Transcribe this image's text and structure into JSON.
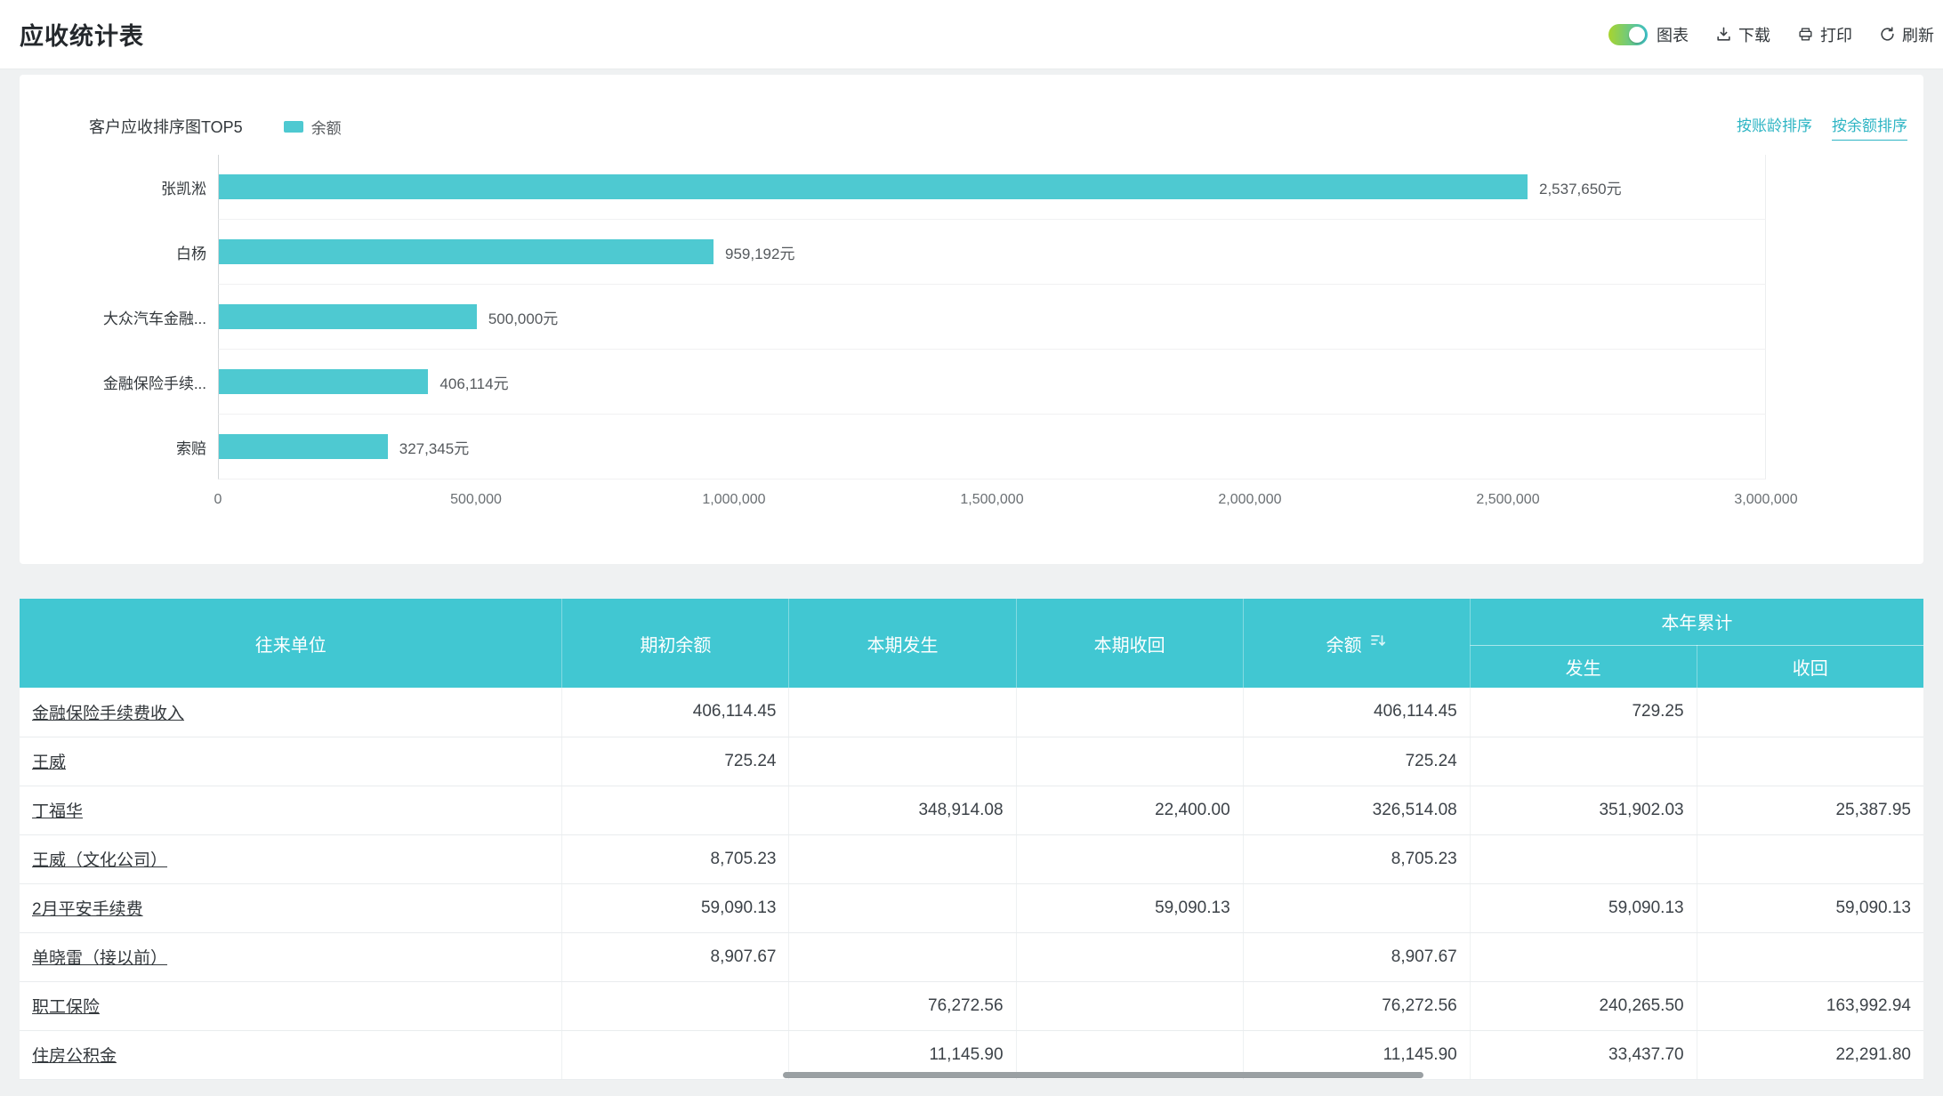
{
  "page": {
    "title": "应收统计表"
  },
  "colors": {
    "accent": "#41c7d2",
    "bar": "#4ec9d1",
    "link": "#2fb5c4"
  },
  "toolbar": {
    "toggle_label": "图表",
    "download_label": "下载",
    "print_label": "打印",
    "refresh_label": "刷新"
  },
  "chart": {
    "title": "客户应收排序图TOP5",
    "legend": "余额",
    "sort_by_age": "按账龄排序",
    "sort_by_balance": "按余额排序"
  },
  "chart_data": {
    "type": "bar",
    "orientation": "horizontal",
    "title": "客户应收排序图TOP5",
    "legend": [
      "余额"
    ],
    "categories": [
      "张凯淞",
      "白杨",
      "大众汽车金融...",
      "金融保险手续...",
      "索赔"
    ],
    "values": [
      2537650,
      959192,
      500000,
      406114,
      327345
    ],
    "labels": [
      "2,537,650元",
      "959,192元",
      "500,000元",
      "406,114元",
      "327,345元"
    ],
    "xlim": [
      0,
      3000000
    ],
    "x_ticks": [
      "0",
      "500,000",
      "1,000,000",
      "1,500,000",
      "2,000,000",
      "2,500,000",
      "3,000,000"
    ],
    "grid": "row-separators",
    "legend_position": "top"
  },
  "table": {
    "headers": {
      "company": "往来单位",
      "opening": "期初余额",
      "current_incurred": "本期发生",
      "current_recovered": "本期收回",
      "balance": "余额",
      "ytd": "本年累计",
      "ytd_incurred": "发生",
      "ytd_recovered": "收回"
    },
    "rows": [
      {
        "company": "金融保险手续费收入",
        "opening": "406,114.45",
        "incurred": "",
        "recovered": "",
        "balance": "406,114.45",
        "ytd_incurred": "729.25",
        "ytd_recovered": ""
      },
      {
        "company": "王威",
        "opening": "725.24",
        "incurred": "",
        "recovered": "",
        "balance": "725.24",
        "ytd_incurred": "",
        "ytd_recovered": ""
      },
      {
        "company": "丁福华",
        "opening": "",
        "incurred": "348,914.08",
        "recovered": "22,400.00",
        "balance": "326,514.08",
        "ytd_incurred": "351,902.03",
        "ytd_recovered": "25,387.95"
      },
      {
        "company": "王威（文化公司）",
        "opening": "8,705.23",
        "incurred": "",
        "recovered": "",
        "balance": "8,705.23",
        "ytd_incurred": "",
        "ytd_recovered": ""
      },
      {
        "company": "2月平安手续费",
        "opening": "59,090.13",
        "incurred": "",
        "recovered": "59,090.13",
        "balance": "",
        "ytd_incurred": "59,090.13",
        "ytd_recovered": "59,090.13"
      },
      {
        "company": "单晓雷（接以前）",
        "opening": "8,907.67",
        "incurred": "",
        "recovered": "",
        "balance": "8,907.67",
        "ytd_incurred": "",
        "ytd_recovered": ""
      },
      {
        "company": "职工保险",
        "opening": "",
        "incurred": "76,272.56",
        "recovered": "",
        "balance": "76,272.56",
        "ytd_incurred": "240,265.50",
        "ytd_recovered": "163,992.94"
      },
      {
        "company": "住房公积金",
        "opening": "",
        "incurred": "11,145.90",
        "recovered": "",
        "balance": "11,145.90",
        "ytd_incurred": "33,437.70",
        "ytd_recovered": "22,291.80"
      }
    ]
  }
}
